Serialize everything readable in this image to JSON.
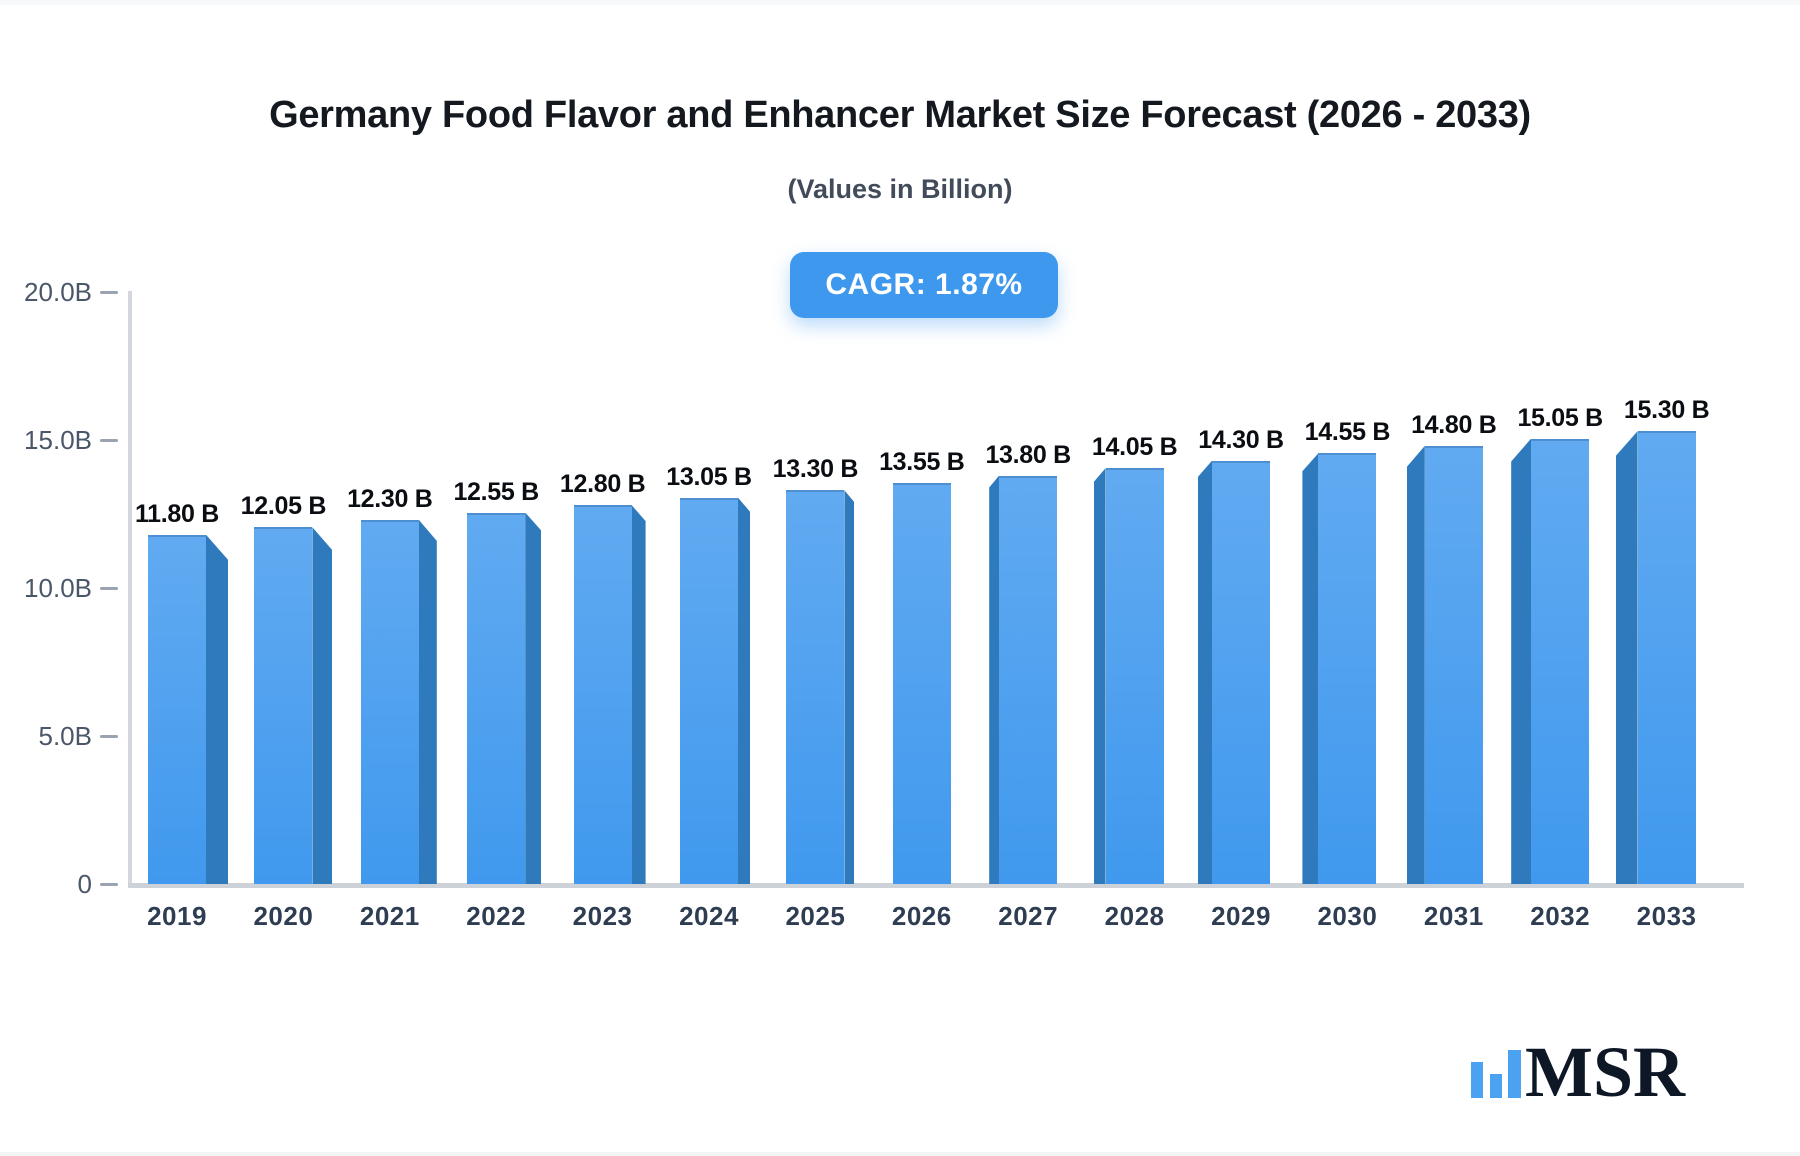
{
  "header": {
    "title": "Germany Food Flavor and Enhancer Market Size Forecast (2026 - 2033)",
    "subtitle": "(Values in Billion)",
    "cagr_badge": "CAGR: 1.87%"
  },
  "chart_data": {
    "type": "bar",
    "title": "Germany Food Flavor and Enhancer Market Size Forecast (2026 - 2033)",
    "subtitle": "(Values in Billion)",
    "cagr_percent": 1.87,
    "categories": [
      "2019",
      "2020",
      "2021",
      "2022",
      "2023",
      "2024",
      "2025",
      "2026",
      "2027",
      "2028",
      "2029",
      "2030",
      "2031",
      "2032",
      "2033"
    ],
    "values": [
      11.8,
      12.05,
      12.3,
      12.55,
      12.8,
      13.05,
      13.3,
      13.55,
      13.8,
      14.05,
      14.3,
      14.55,
      14.8,
      15.05,
      15.3
    ],
    "bar_labels": [
      "11.80 B",
      "12.05 B",
      "12.30 B",
      "12.55 B",
      "12.80 B",
      "13.05 B",
      "13.30 B",
      "13.55 B",
      "13.80 B",
      "14.05 B",
      "14.30 B",
      "14.55 B",
      "14.80 B",
      "15.05 B",
      "15.30 B"
    ],
    "xlabel": "",
    "ylabel": "",
    "ylim": [
      0,
      20
    ],
    "yticks": {
      "values": [
        20,
        15,
        10,
        5,
        0
      ],
      "labels": [
        "20.0B",
        "15.0B",
        "10.0B",
        "5.0B",
        "0"
      ]
    },
    "grid": false,
    "legend": false,
    "style": "pseudo-3d columns, perspective vanishing toward center bar",
    "colors": {
      "bar_front_top": "#61aaf1",
      "bar_front_bottom": "#4099ee",
      "bar_side": "#2e7abc",
      "bar_top_edge": "#4e8fd2",
      "badge_background": "#3e98ed",
      "badge_text": "#ffffff",
      "axis_line": "#d3d7dd",
      "baseline": "#cdd2d9",
      "ytick_text": "#4b5768",
      "xtick_text": "#2f3d52",
      "value_label_text": "#0a0d12",
      "title_text": "#14181f",
      "subtitle_text": "#414b5a"
    }
  },
  "branding": {
    "logo_text": "MSR",
    "logo_icon": "bar-chart-icon",
    "logo_icon_color": "#4aa2f0",
    "logo_text_color": "#0e1726"
  }
}
